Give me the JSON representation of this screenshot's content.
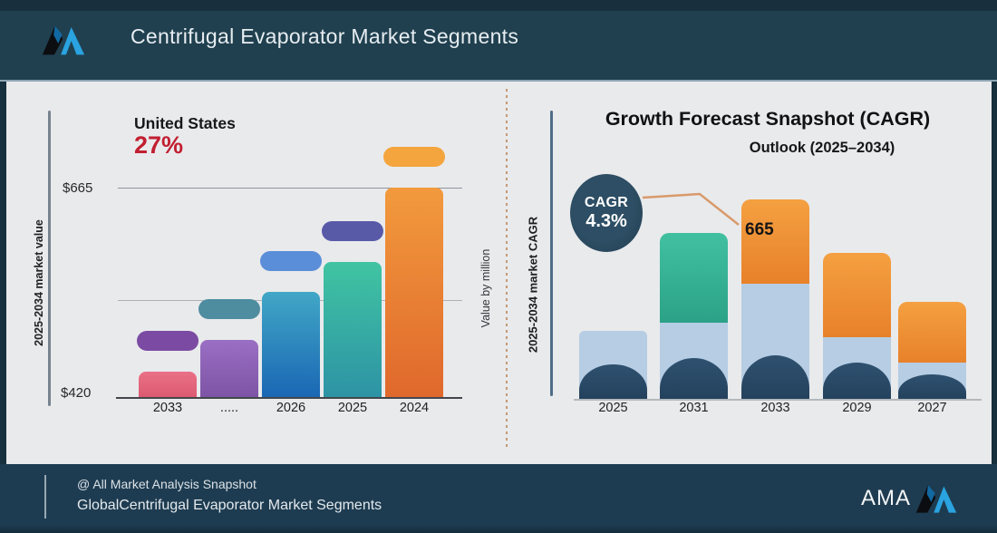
{
  "header": {
    "title": "Centrifugal Evaporator Market Segments"
  },
  "footer": {
    "line1": "@ All Market Analysis Snapshot",
    "line2": "GlobalCentrifugal Evaporator Market Segments",
    "brand": "AMA"
  },
  "colors": {
    "header_navy": "#20404f",
    "content_gray": "#e9eaec",
    "accent_red": "#c11f31",
    "badge_navy": "#2d4e64",
    "divider_tan": "#c49a76",
    "connector_tan": "#d99a6c",
    "logo_black": "#0c0d10",
    "logo_blue": "#2aa3e0"
  },
  "chart_data": [
    {
      "type": "bar",
      "title": "United States",
      "highlight": "27%",
      "ylabel": "2025-2034 market value",
      "ylabel_right": "Value by million",
      "yticks": [
        "$420",
        "$665"
      ],
      "ylim": [
        420,
        690
      ],
      "grid": "horizontal",
      "categories": [
        "2033",
        ".....",
        "2026",
        "2025",
        "2024"
      ],
      "values": [
        450,
        487,
        543,
        578,
        665
      ],
      "bar_colors": [
        [
          "#ea7187",
          "#dc5a71"
        ],
        [
          "#9a6fc4",
          "#7e54a6"
        ],
        [
          "#41a7c6",
          "#1a67b4"
        ],
        [
          "#40c4a2",
          "#2d93a5"
        ],
        [
          "#f29a3d",
          "#e0682c"
        ]
      ],
      "cap_colors": [
        "#7b4ba3",
        "#4e8ca0",
        "#5b8ed8",
        "#585aa8",
        "#f4a53e"
      ]
    },
    {
      "type": "stacked-bar",
      "title": "Growth Forecast Snapshot (CAGR)",
      "subtitle": "Outlook (2025–2034)",
      "ylabel": "2025-2034 market CAGR",
      "badge": {
        "label": "CAGR",
        "value": "4.3%"
      },
      "annotation": {
        "text": "665",
        "category": "2033"
      },
      "categories": [
        "2025",
        "2031",
        "2033",
        "2029",
        "2027"
      ],
      "palette": {
        "orange": [
          "#f4a041",
          "#e8812a"
        ],
        "teal": [
          "#41c0a0",
          "#2ba287"
        ],
        "light": "#b6cde4",
        "dark": [
          "#2f516f",
          "#24425e"
        ]
      },
      "bars": [
        {
          "label": "2025",
          "top_type": "none",
          "top_h": 0,
          "light_h": 75,
          "dark_h": 38
        },
        {
          "label": "2031",
          "top_type": "teal",
          "top_h": 99,
          "light_h": 84,
          "dark_h": 45
        },
        {
          "label": "2033",
          "top_type": "orange",
          "top_h": 93,
          "light_h": 127,
          "dark_h": 48
        },
        {
          "label": "2029",
          "top_type": "orange",
          "top_h": 93,
          "light_h": 68,
          "dark_h": 40
        },
        {
          "label": "2027",
          "top_type": "orange",
          "top_h": 67,
          "light_h": 40,
          "dark_h": 27
        }
      ]
    }
  ]
}
